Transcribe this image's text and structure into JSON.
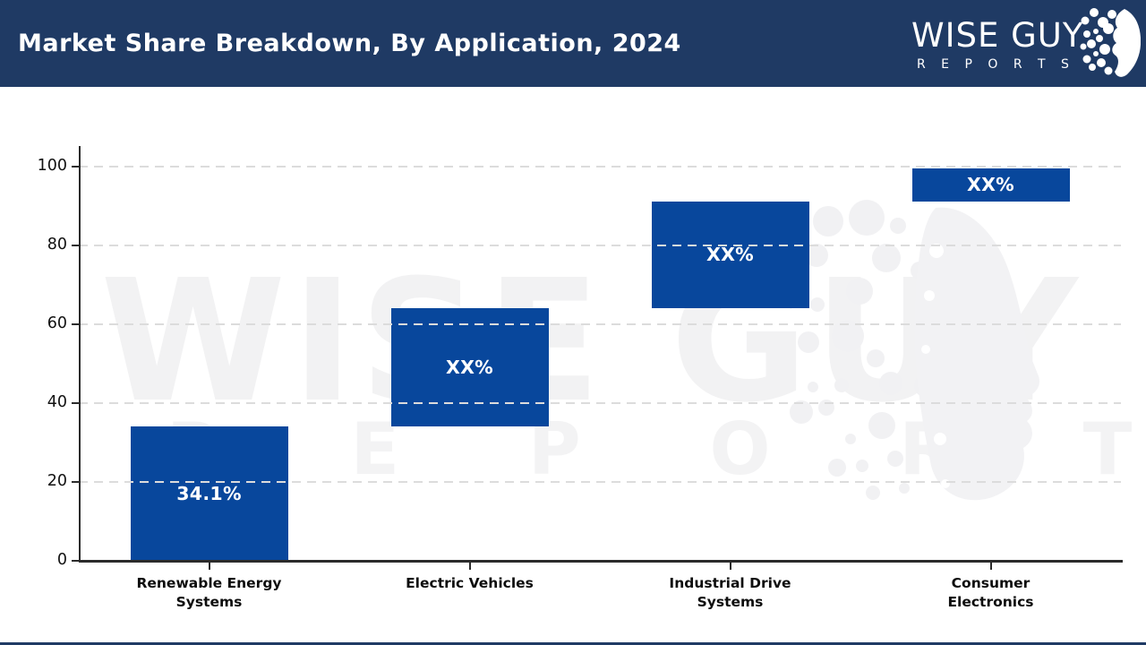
{
  "header": {
    "title": "Market Share Breakdown, By Application, 2024",
    "logo_line1": "WISE GUY",
    "logo_line2": "R E P O R T S"
  },
  "watermark": {
    "line1": "WISE GUY",
    "line2": "R E P O R T S"
  },
  "colors": {
    "header_bg": "#1f3a64",
    "bar": "#08479c",
    "bar_label": "#ffffff",
    "grid": "#dcdcdc",
    "axis": "#2b2b2b",
    "watermark": "#f2f2f3"
  },
  "chart_data": {
    "type": "bar",
    "subtype": "waterfall",
    "title": "Market Share Breakdown, By Application, 2024",
    "xlabel": "",
    "ylabel": "",
    "ylim": [
      0,
      105
    ],
    "yticks": [
      0,
      20,
      40,
      60,
      80,
      100
    ],
    "grid": "dashed-horizontal",
    "legend": "none",
    "bar_color": "#08479c",
    "categories": [
      "Renewable Energy Systems",
      "Electric Vehicles",
      "Industrial Drive Systems",
      "Consumer Electronics"
    ],
    "category_lines": [
      [
        "Renewable Energy",
        "Systems"
      ],
      [
        "Electric Vehicles"
      ],
      [
        "Industrial Drive",
        "Systems"
      ],
      [
        "Consumer",
        "Electronics"
      ]
    ],
    "series": [
      {
        "name": "Market Share",
        "segments": [
          {
            "category": "Renewable Energy Systems",
            "start": 0,
            "end": 34.1,
            "label": "34.1%"
          },
          {
            "category": "Electric Vehicles",
            "start": 34.1,
            "end": 64.2,
            "label": "XX%"
          },
          {
            "category": "Industrial Drive Systems",
            "start": 64.1,
            "end": 91.2,
            "label": "XX%"
          },
          {
            "category": "Consumer Electronics",
            "start": 91.2,
            "end": 99.6,
            "label": "XX%"
          }
        ]
      }
    ]
  }
}
